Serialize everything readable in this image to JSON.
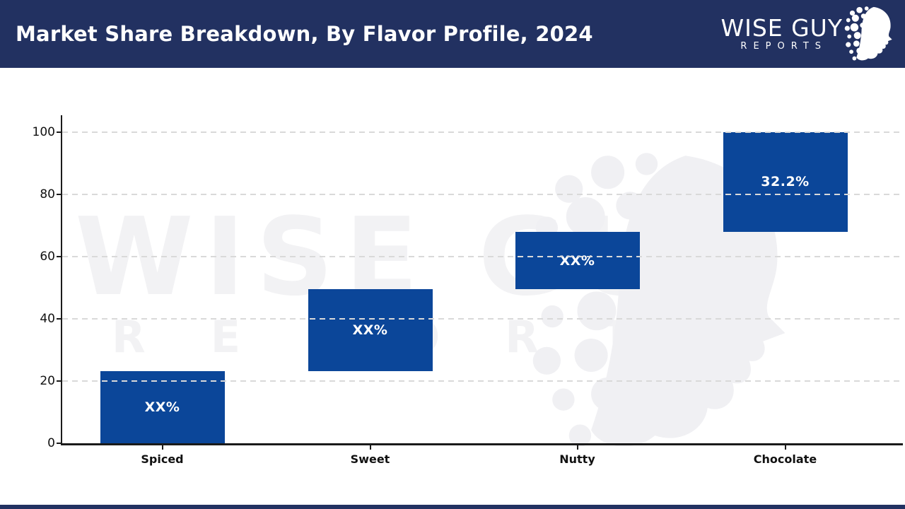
{
  "header": {
    "title": "Market Share Breakdown, By Flavor Profile, 2024",
    "bg_color": "#223161",
    "text_color": "#ffffff",
    "logo": {
      "name": "WISE GUY",
      "tagline": "REPORTS"
    }
  },
  "watermark": {
    "line1": "WISE GUY",
    "line2": "REPORTS",
    "color": "#f2f2f4"
  },
  "chart_data": {
    "type": "bar",
    "subtype": "waterfall-floating-bars",
    "title": "Market Share Breakdown, By Flavor Profile, 2024",
    "categories": [
      "Spiced",
      "Sweet",
      "Nutty",
      "Chocolate"
    ],
    "bars": [
      {
        "category": "Spiced",
        "start": 0,
        "end": 23.2,
        "size": 23.2,
        "value_label": "XX%"
      },
      {
        "category": "Sweet",
        "start": 23.2,
        "end": 49.4,
        "size": 26.2,
        "value_label": "XX%"
      },
      {
        "category": "Nutty",
        "start": 49.4,
        "end": 67.8,
        "size": 18.4,
        "value_label": "XX%"
      },
      {
        "category": "Chocolate",
        "start": 67.8,
        "end": 100,
        "size": 32.2,
        "value_label": "32.2%"
      }
    ],
    "ylim": [
      0,
      100
    ],
    "yticks": [
      0,
      20,
      40,
      60,
      80,
      100
    ],
    "xlabel": "",
    "ylabel": "",
    "grid": "horizontal-dashed",
    "legend": "none",
    "colors": {
      "bar": "#0b4699",
      "bar_label": "#ffffff",
      "grid": "#d9d9d9",
      "axis": "#1a1a1a",
      "tick_text": "#111111"
    }
  },
  "footer": {
    "accent_color": "#223161"
  }
}
